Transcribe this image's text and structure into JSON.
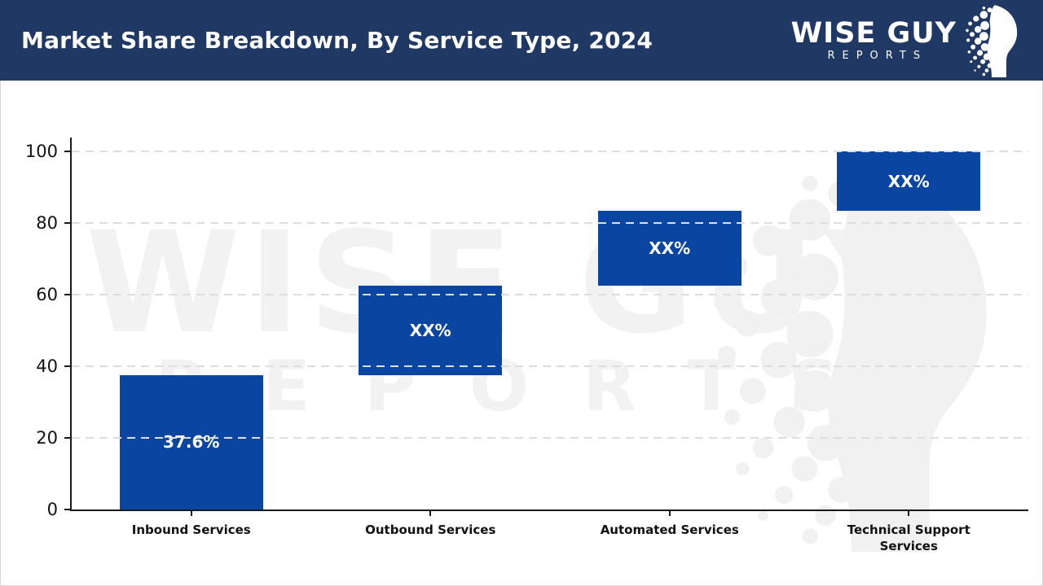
{
  "header": {
    "title": "Market Share Breakdown, By Service Type, 2024",
    "logo": {
      "line1": "WISE GUY",
      "line2": "REPORTS"
    }
  },
  "watermark": {
    "line1": "WISE GUY",
    "line2": "REPORTS"
  },
  "chart_data": {
    "type": "bar",
    "variant": "waterfall",
    "title": "Market Share Breakdown, By Service Type, 2024",
    "categories": [
      "Inbound Services",
      "Outbound Services",
      "Automated Services",
      "Technical Support Services"
    ],
    "bars": [
      {
        "category": "Inbound Services",
        "start": 0,
        "end": 37.6,
        "label": "37.6%"
      },
      {
        "category": "Outbound Services",
        "start": 37.6,
        "end": 62.6,
        "label": "XX%"
      },
      {
        "category": "Automated Services",
        "start": 62.6,
        "end": 83.4,
        "label": "XX%"
      },
      {
        "category": "Technical Support Services",
        "start": 83.4,
        "end": 100,
        "label": "XX%"
      }
    ],
    "xlabel": "",
    "ylabel": "",
    "ylim": [
      0,
      100
    ],
    "yticks": [
      0,
      20,
      40,
      60,
      80,
      100
    ],
    "grid": true,
    "grid_style": "dashed",
    "grid_over_bars": true,
    "legend": false,
    "colors": {
      "bar": "#0b45a2",
      "bar_label": "#ffffff",
      "header_background": "#1f3864",
      "axis": "#1a1a1a",
      "gridline": "#dedede",
      "watermark": "#f2f2f3"
    }
  }
}
